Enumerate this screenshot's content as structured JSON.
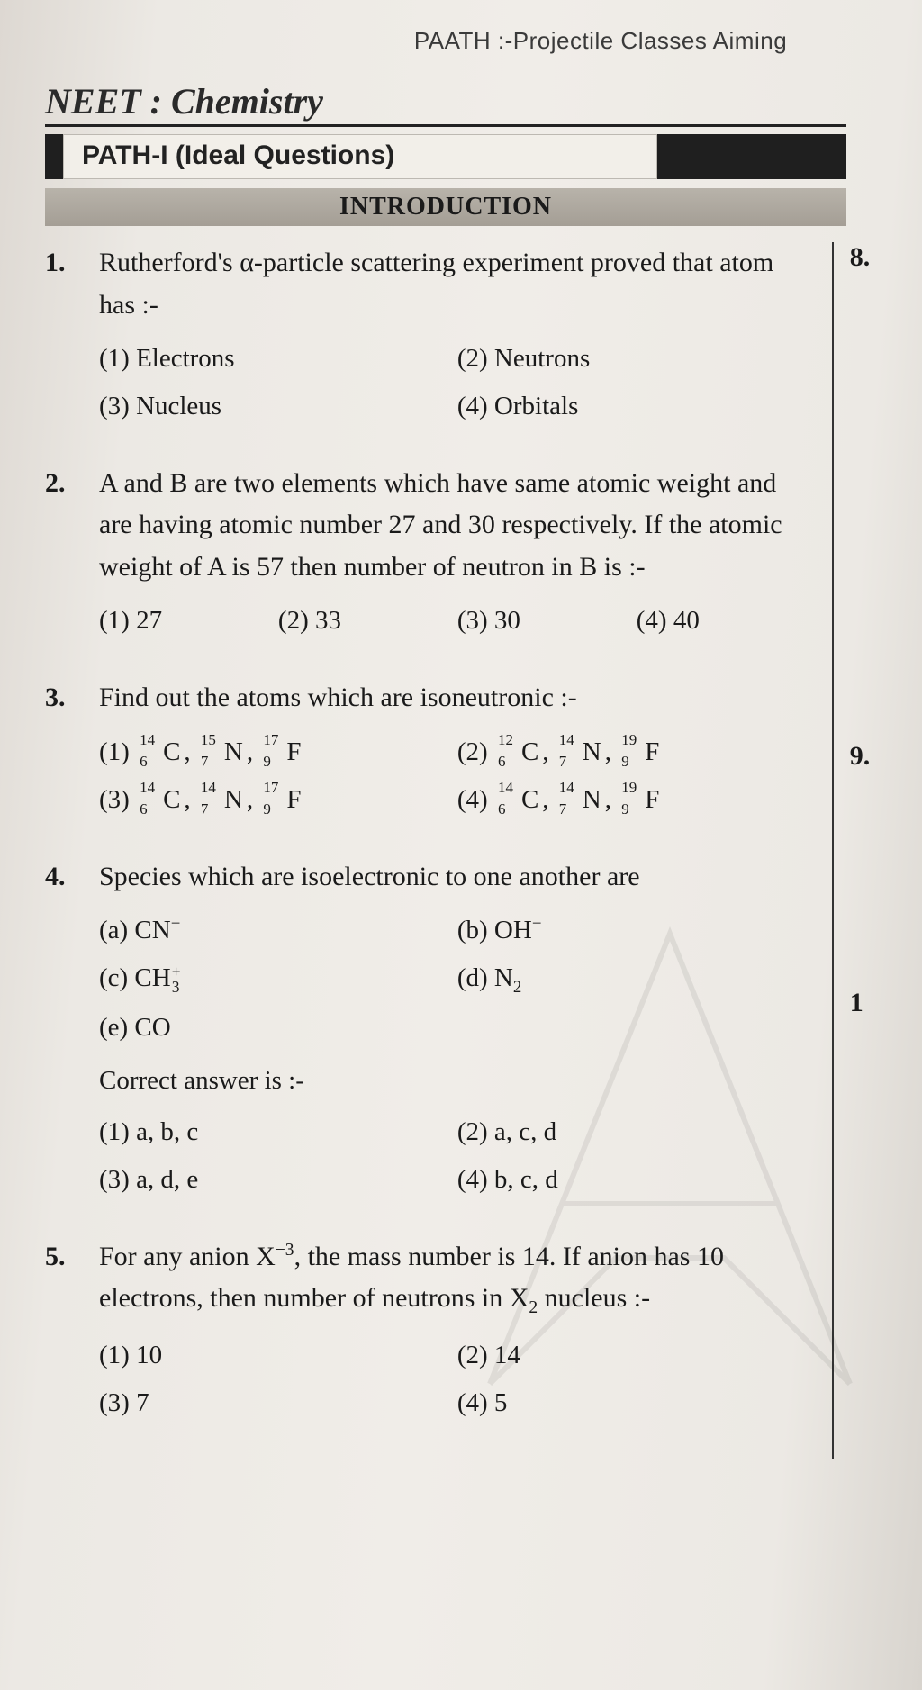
{
  "brand": "PAATH :-Projectile Classes Aiming",
  "subject": "NEET : Chemistry",
  "path_label": "PATH-I (Ideal Questions)",
  "intro_heading": "INTRODUCTION",
  "side_markers": [
    "8.",
    "9.",
    "1"
  ],
  "colors": {
    "page_bg": "#ece9e4",
    "bar_bg": "#a49e95",
    "dark": "#1f1f1f",
    "text": "#1a1a1a"
  },
  "questions": [
    {
      "num": "1.",
      "text": "Rutherford's α-particle scattering experiment proved that atom has :-",
      "layout": "half",
      "options": [
        {
          "k": "(1)",
          "v": "Electrons"
        },
        {
          "k": "(2)",
          "v": "Neutrons"
        },
        {
          "k": "(3)",
          "v": "Nucleus"
        },
        {
          "k": "(4)",
          "v": "Orbitals"
        }
      ]
    },
    {
      "num": "2.",
      "text": "A and B are two elements which have same atomic weight and are having atomic number 27 and 30 respectively. If the atomic weight of A is 57 then number of neutron in B is :-",
      "layout": "quarter",
      "options": [
        {
          "k": "(1)",
          "v": "27"
        },
        {
          "k": "(2)",
          "v": "33"
        },
        {
          "k": "(3)",
          "v": "30"
        },
        {
          "k": "(4)",
          "v": "40"
        }
      ]
    },
    {
      "num": "3.",
      "text": "Find out the atoms which are isoneutronic :-",
      "layout": "half",
      "iso_options": [
        {
          "k": "(1)",
          "items": [
            {
              "a": "14",
              "z": "6",
              "el": "C"
            },
            {
              "a": "15",
              "z": "7",
              "el": "N"
            },
            {
              "a": "17",
              "z": "9",
              "el": "F"
            }
          ]
        },
        {
          "k": "(2)",
          "items": [
            {
              "a": "12",
              "z": "6",
              "el": "C"
            },
            {
              "a": "14",
              "z": "7",
              "el": "N"
            },
            {
              "a": "19",
              "z": "9",
              "el": "F"
            }
          ]
        },
        {
          "k": "(3)",
          "items": [
            {
              "a": "14",
              "z": "6",
              "el": "C"
            },
            {
              "a": "14",
              "z": "7",
              "el": "N"
            },
            {
              "a": "17",
              "z": "9",
              "el": "F"
            }
          ]
        },
        {
          "k": "(4)",
          "items": [
            {
              "a": "14",
              "z": "6",
              "el": "C"
            },
            {
              "a": "14",
              "z": "7",
              "el": "N"
            },
            {
              "a": "19",
              "z": "9",
              "el": "F"
            }
          ]
        }
      ]
    },
    {
      "num": "4.",
      "text": "Species which are isoelectronic to one another are",
      "sub_options": [
        {
          "k": "(a)",
          "html": "CN<sup>−</sup>"
        },
        {
          "k": "(b)",
          "html": "OH<sup>−</sup>"
        },
        {
          "k": "(c)",
          "html": "CH<span class='subsup'><span>+</span><span>3</span></span>"
        },
        {
          "k": "(d)",
          "html": "N<sub>2</sub>"
        },
        {
          "k": "(e)",
          "html": "CO"
        }
      ],
      "sublabel": "Correct answer is :-",
      "layout": "half",
      "options": [
        {
          "k": "(1)",
          "v": "a, b, c"
        },
        {
          "k": "(2)",
          "v": "a, c, d"
        },
        {
          "k": "(3)",
          "v": "a, d, e"
        },
        {
          "k": "(4)",
          "v": "b, c, d"
        }
      ]
    },
    {
      "num": "5.",
      "text_html": "For any anion X<sup>−3</sup>, the mass number is 14. If anion has 10 electrons, then number of neutrons in X<sub>2</sub> nucleus :-",
      "layout": "half",
      "options": [
        {
          "k": "(1)",
          "v": "10"
        },
        {
          "k": "(2)",
          "v": "14"
        },
        {
          "k": "(3)",
          "v": "7"
        },
        {
          "k": "(4)",
          "v": "5"
        }
      ]
    }
  ]
}
